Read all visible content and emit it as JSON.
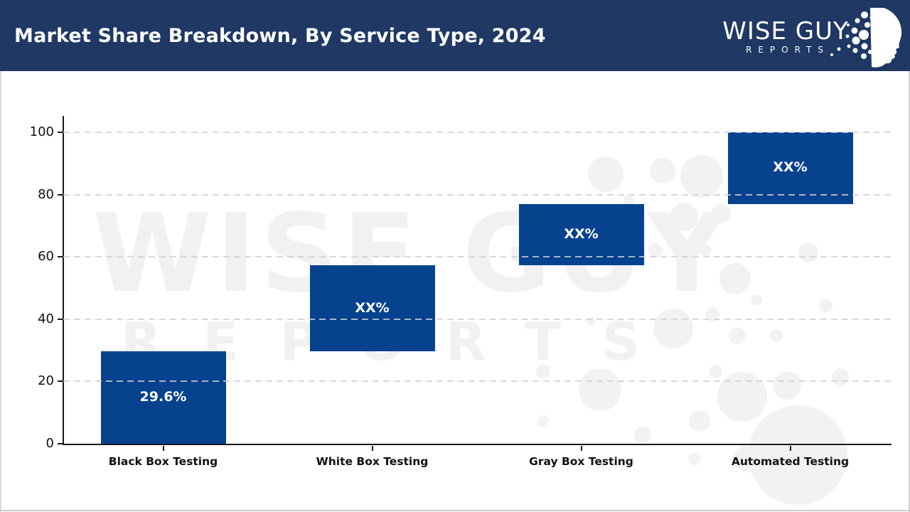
{
  "header": {
    "title": "Market Share Breakdown, By Service Type, 2024",
    "bg_color": "#1f3864",
    "logo": {
      "line1": "WISE GUY",
      "line2": "REPORTS"
    }
  },
  "watermark": {
    "line1": "WISE GUY",
    "line2": "REPORTS"
  },
  "chart_data": {
    "type": "bar",
    "subtype": "waterfall-floating-bars",
    "title": "Market Share Breakdown, By Service Type, 2024",
    "categories": [
      "Black Box Testing",
      "White Box Testing",
      "Gray Box Testing",
      "Automated Testing"
    ],
    "segments": [
      {
        "category": "Black Box Testing",
        "start": 0,
        "end": 29.6,
        "label": "29.6%"
      },
      {
        "category": "White Box Testing",
        "start": 29.6,
        "end": 57.2,
        "label": "XX%"
      },
      {
        "category": "Gray Box Testing",
        "start": 57.2,
        "end": 77.0,
        "label": "XX%"
      },
      {
        "category": "Automated Testing",
        "start": 77.0,
        "end": 100.0,
        "label": "XX%"
      }
    ],
    "y_ticks": [
      0,
      20,
      40,
      60,
      80,
      100
    ],
    "ylim": [
      0,
      100
    ],
    "xlabel": "",
    "ylabel": "",
    "legend": "none",
    "grid": "dashed-horizontal-over-bars",
    "bar_color": "#07428f",
    "grid_color": "#d0d0d0",
    "value_label_color": "#ffffff"
  }
}
